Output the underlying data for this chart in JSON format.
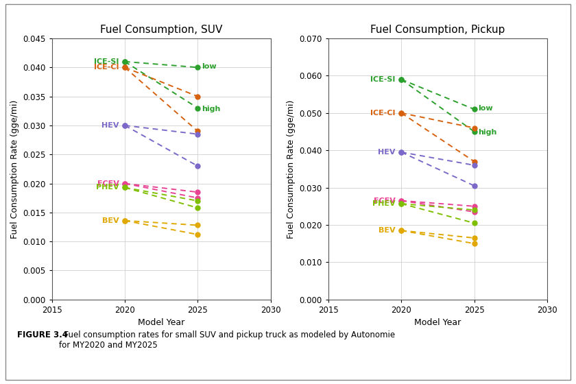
{
  "suv": {
    "title": "Fuel Consumption, SUV",
    "ylim": [
      0.0,
      0.045
    ],
    "yticks": [
      0.0,
      0.005,
      0.01,
      0.015,
      0.02,
      0.025,
      0.03,
      0.035,
      0.04,
      0.045
    ],
    "series": [
      {
        "label": "ICE-SI",
        "color": "#2ca02c",
        "years": [
          2020,
          2025
        ],
        "low": [
          0.041,
          0.04
        ],
        "high": [
          0.041,
          0.033
        ]
      },
      {
        "label": "ICE-CI",
        "color": "#d6620f",
        "years": [
          2020,
          2025
        ],
        "low": [
          0.04,
          0.035
        ],
        "high": [
          0.04,
          0.029
        ]
      },
      {
        "label": "HEV",
        "color": "#7b68c8",
        "years": [
          2020,
          2025
        ],
        "low": [
          0.03,
          0.0285
        ],
        "high": [
          0.03,
          0.023
        ]
      },
      {
        "label": "FCEV",
        "color": "#e84393",
        "years": [
          2020,
          2025
        ],
        "low": [
          0.02,
          0.0185
        ],
        "high": [
          0.02,
          0.0175
        ]
      },
      {
        "label": "PHEV",
        "color": "#7fbf00",
        "years": [
          2020,
          2025
        ],
        "low": [
          0.0193,
          0.017
        ],
        "high": [
          0.0193,
          0.0158
        ]
      },
      {
        "label": "BEV",
        "color": "#e0a800",
        "years": [
          2020,
          2025
        ],
        "low": [
          0.0136,
          0.0128
        ],
        "high": [
          0.0136,
          0.0112
        ]
      }
    ],
    "label_low": "low",
    "label_high": "high",
    "low_label_idx": 0,
    "high_label_idx": 0
  },
  "pickup": {
    "title": "Fuel Consumption, Pickup",
    "ylim": [
      0.0,
      0.07
    ],
    "yticks": [
      0.0,
      0.01,
      0.02,
      0.03,
      0.04,
      0.05,
      0.06,
      0.07
    ],
    "series": [
      {
        "label": "ICE-SI",
        "color": "#2ca02c",
        "years": [
          2020,
          2025
        ],
        "low": [
          0.059,
          0.051
        ],
        "high": [
          0.059,
          0.045
        ]
      },
      {
        "label": "ICE-CI",
        "color": "#d6620f",
        "years": [
          2020,
          2025
        ],
        "low": [
          0.05,
          0.046
        ],
        "high": [
          0.05,
          0.037
        ]
      },
      {
        "label": "HEV",
        "color": "#7b68c8",
        "years": [
          2020,
          2025
        ],
        "low": [
          0.0395,
          0.036
        ],
        "high": [
          0.0395,
          0.0305
        ]
      },
      {
        "label": "FCEV",
        "color": "#e84393",
        "years": [
          2020,
          2025
        ],
        "low": [
          0.0265,
          0.025
        ],
        "high": [
          0.0265,
          0.0235
        ]
      },
      {
        "label": "PHEV",
        "color": "#7fbf00",
        "years": [
          2020,
          2025
        ],
        "low": [
          0.0257,
          0.024
        ],
        "high": [
          0.0257,
          0.0205
        ]
      },
      {
        "label": "BEV",
        "color": "#e0a800",
        "years": [
          2020,
          2025
        ],
        "low": [
          0.0185,
          0.0165
        ],
        "high": [
          0.0185,
          0.015
        ]
      }
    ],
    "label_low": "low",
    "label_high": "high",
    "low_label_idx": 0,
    "high_label_idx": 0
  },
  "xlabel": "Model Year",
  "ylabel": "Fuel Consumption Rate (gge/mi)",
  "caption_bold": "FIGURE 3.4",
  "caption_normal": "  Fuel consumption rates for small SUV and pickup truck as modeled by Autonomie\nfor MY2020 and MY2025",
  "xlim": [
    2015,
    2030
  ],
  "xticks": [
    2015,
    2020,
    2025,
    2030
  ],
  "bg_color": "#ffffff",
  "plot_bg": "#ffffff",
  "grid_color": "#d0d0d0",
  "border_color": "#aaaaaa",
  "title_fontsize": 11,
  "label_fontsize": 8,
  "tick_fontsize": 8.5,
  "axis_label_fontsize": 9,
  "caption_fontsize": 8.5
}
